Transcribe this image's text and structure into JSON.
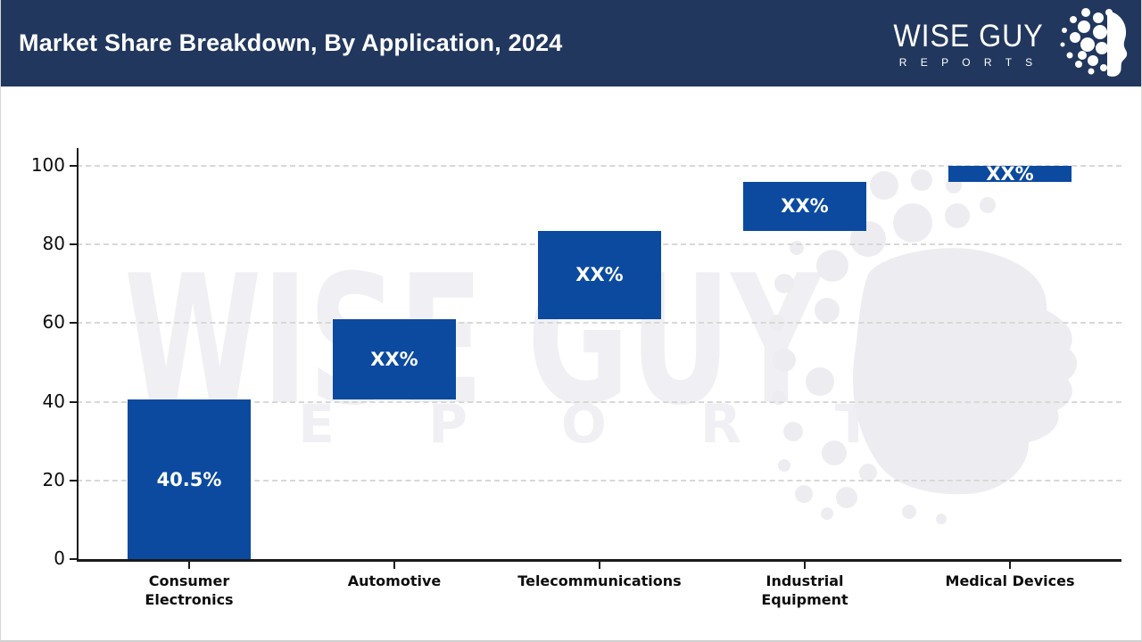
{
  "header": {
    "title": "Market Share Breakdown, By Application, 2024",
    "logo": {
      "name": "WISE GUY",
      "tagline": "R E P O R T S"
    }
  },
  "watermark": {
    "line1": "WISE GUY",
    "line2": "R E P O R T S"
  },
  "chart_data": {
    "type": "bar",
    "subtype": "waterfall",
    "title": "Market Share Breakdown, By Application, 2024",
    "categories": [
      "Consumer\nElectronics",
      "Automotive",
      "Telecommunications",
      "Industrial\nEquipment",
      "Medical Devices"
    ],
    "segments": [
      {
        "category": "Consumer Electronics",
        "start": 0,
        "end": 40.5,
        "value": 40.5,
        "label": "40.5%"
      },
      {
        "category": "Automotive",
        "start": 40.5,
        "end": 61,
        "value": 20.5,
        "label": "XX%"
      },
      {
        "category": "Telecommunications",
        "start": 61,
        "end": 83.5,
        "value": 22.5,
        "label": "XX%"
      },
      {
        "category": "Industrial Equipment",
        "start": 83.5,
        "end": 96,
        "value": 12.5,
        "label": "XX%"
      },
      {
        "category": "Medical Devices",
        "start": 96,
        "end": 100,
        "value": 4,
        "label": "XX%"
      }
    ],
    "yticks": [
      0,
      20,
      40,
      60,
      80,
      100
    ],
    "gridlines_at": [
      20,
      40,
      60,
      80,
      100
    ],
    "ylim": [
      0,
      104.5
    ],
    "xlabel": "",
    "ylabel": "",
    "legend": null,
    "grid": "horizontal-dashed",
    "bar_color": "#0b4a9f",
    "bar_label_color": "#ffffff",
    "bar_label_overflow_color": "#131c33",
    "axis_color": "#1a1a1a",
    "grid_color": "#d8d8d8",
    "header_bg_color": "#21375e"
  }
}
